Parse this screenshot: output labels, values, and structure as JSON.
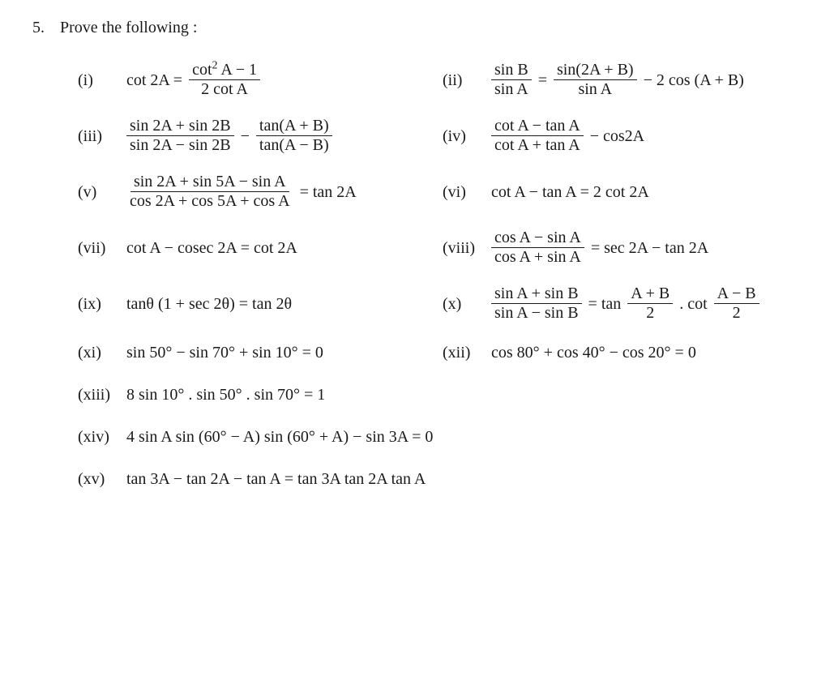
{
  "question": {
    "number": "5.",
    "title": "Prove the following :"
  },
  "font": {
    "family": "Times New Roman",
    "size_pt": 20,
    "color": "#1a1a1a"
  },
  "background_color": "#ffffff",
  "rows": [
    {
      "left": {
        "roman": "(i)",
        "segments": [
          {
            "type": "text",
            "value": "cot 2A ="
          },
          {
            "type": "frac",
            "num": "cot² A − 1",
            "den": "2 cot A"
          }
        ]
      },
      "right": {
        "roman": "(ii)",
        "segments": [
          {
            "type": "frac",
            "num": "sin B",
            "den": "sin A"
          },
          {
            "type": "text",
            "value": "="
          },
          {
            "type": "frac",
            "num": "sin(2A + B)",
            "den": "sin A"
          },
          {
            "type": "text",
            "value": "− 2 cos (A + B)"
          }
        ]
      }
    },
    {
      "left": {
        "roman": "(iii)",
        "segments": [
          {
            "type": "frac",
            "num": "sin 2A + sin 2B",
            "den": "sin 2A − sin 2B"
          },
          {
            "type": "text",
            "value": "−"
          },
          {
            "type": "frac",
            "num": "tan(A + B)",
            "den": "tan(A − B)"
          }
        ]
      },
      "right": {
        "roman": "(iv)",
        "segments": [
          {
            "type": "frac",
            "num": "cot A − tan A",
            "den": "cot A + tan A"
          },
          {
            "type": "text",
            "value": "− cos2A"
          }
        ]
      }
    },
    {
      "left": {
        "roman": "(v)",
        "segments": [
          {
            "type": "frac",
            "num": "sin 2A + sin 5A − sin A",
            "den": "cos 2A + cos 5A + cos A"
          },
          {
            "type": "text",
            "value": "= tan 2A"
          }
        ]
      },
      "right": {
        "roman": "(vi)",
        "segments": [
          {
            "type": "text",
            "value": "cot A − tan A = 2 cot 2A"
          }
        ]
      }
    },
    {
      "left": {
        "roman": "(vii)",
        "segments": [
          {
            "type": "text",
            "value": "cot A − cosec 2A = cot 2A"
          }
        ]
      },
      "right": {
        "roman": "(viii)",
        "segments": [
          {
            "type": "frac",
            "num": "cos A − sin A",
            "den": "cos A + sin A"
          },
          {
            "type": "text",
            "value": "= sec 2A − tan 2A"
          }
        ]
      }
    },
    {
      "left": {
        "roman": "(ix)",
        "segments": [
          {
            "type": "text",
            "value": "tanθ (1 + sec 2θ) = tan 2θ"
          }
        ]
      },
      "right": {
        "roman": "(x)",
        "segments": [
          {
            "type": "frac",
            "num": "sin A + sin B",
            "den": "sin A − sin B"
          },
          {
            "type": "text",
            "value": "= tan"
          },
          {
            "type": "frac",
            "num": "A + B",
            "den": "2"
          },
          {
            "type": "text",
            "value": ". cot"
          },
          {
            "type": "frac",
            "num": "A − B",
            "den": "2"
          }
        ]
      }
    },
    {
      "left": {
        "roman": "(xi)",
        "segments": [
          {
            "type": "text",
            "value": "sin 50° − sin 70° + sin 10° = 0"
          }
        ]
      },
      "right": {
        "roman": "(xii)",
        "segments": [
          {
            "type": "text",
            "value": "cos 80° + cos 40° − cos 20° = 0"
          }
        ]
      }
    },
    {
      "left": {
        "roman": "(xiii)",
        "segments": [
          {
            "type": "text",
            "value": "8 sin 10° . sin 50° . sin 70° = 1"
          }
        ]
      }
    },
    {
      "left": {
        "roman": "(xiv)",
        "segments": [
          {
            "type": "text",
            "value": "4 sin A  sin (60° − A) sin (60° + A) − sin 3A = 0"
          }
        ]
      }
    },
    {
      "left": {
        "roman": "(xv)",
        "segments": [
          {
            "type": "text",
            "value": "tan 3A − tan 2A − tan A = tan 3A tan 2A tan A"
          }
        ]
      }
    }
  ]
}
